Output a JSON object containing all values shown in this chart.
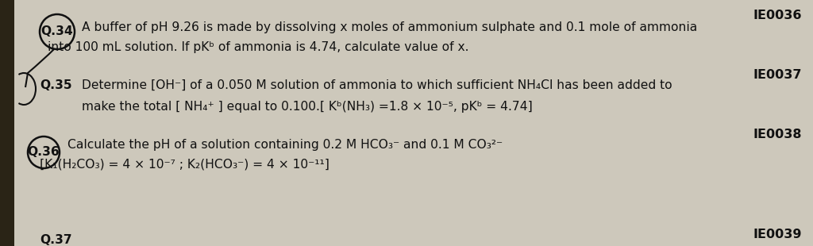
{
  "background_color": "#cdc8bb",
  "id1": "IE0036",
  "id2": "IE0037",
  "id3": "IE0038",
  "id4": "IE0039",
  "q34_label": "Q.34",
  "q34_line1": "A buffer of pH 9.26 is made by dissolving x moles of ammonium sulphate and 0.1 mole of ammonia",
  "q34_line2": "into 100 mL solution. If pKᵇ of ammonia is 4.74, calculate value of x.",
  "q35_label": "Q.35",
  "q35_line1": "Determine [OH⁻] of a 0.050 M solution of ammonia to which sufficient NH₄Cl has been added to",
  "q35_line2": "make the total [ NH₄⁺ ] equal to 0.100.[ Kᵇ(NH₃) =1.8 × 10⁻⁵, pKᵇ = 4.74]",
  "q36_label": "Q.36",
  "q36_line1": "Calculate the pH of a solution containing 0.2 M HCO₃⁻ and 0.1 M CO₃²⁻",
  "q36_line2": "[K₁(H₂CO₃) = 4 × 10⁻⁷ ; K₂(HCO₃⁻) = 4 × 10⁻¹¹]",
  "q37_partial": "Q.37",
  "text_color": "#111111",
  "left_strip_color": "#2a2416",
  "font_size_main": 11.2,
  "font_size_id": 11.5
}
